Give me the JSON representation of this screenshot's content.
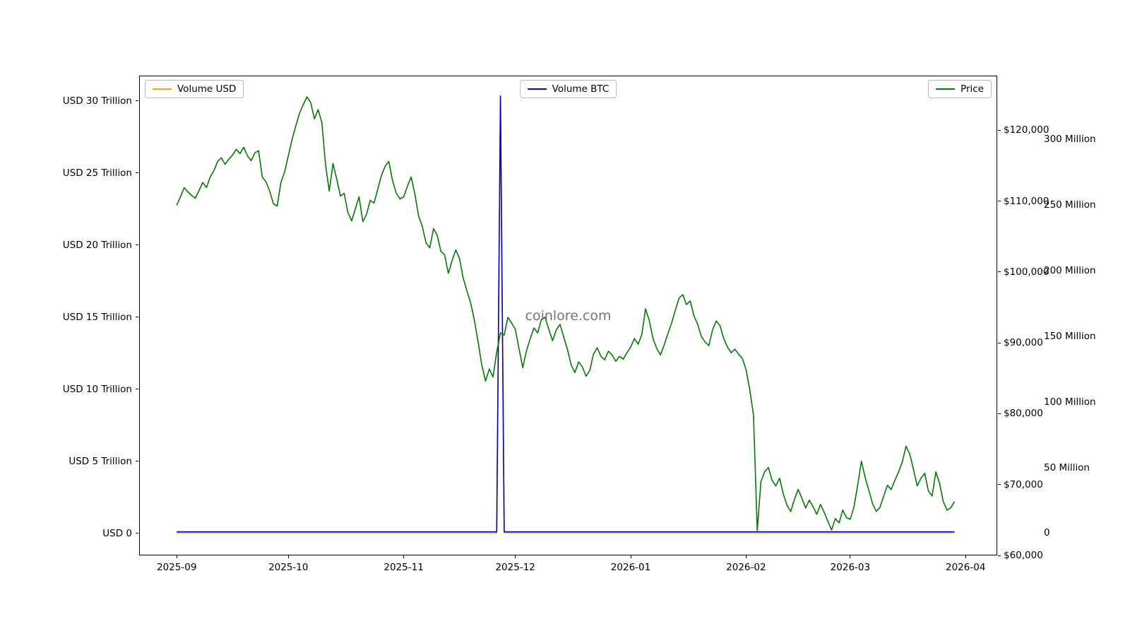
{
  "chart_data": {
    "type": "line",
    "title": "",
    "watermark": "coinlore.com",
    "grid": false,
    "x_axis": {
      "unit": "date",
      "start_date": "2025-09-01",
      "interval": "daily",
      "xlim_days": [
        -10.1,
        220.5
      ],
      "ticks": [
        {
          "label": "2025-09",
          "day": 0
        },
        {
          "label": "2025-10",
          "day": 30
        },
        {
          "label": "2025-11",
          "day": 61
        },
        {
          "label": "2025-12",
          "day": 91
        },
        {
          "label": "2026-01",
          "day": 122
        },
        {
          "label": "2026-02",
          "day": 153
        },
        {
          "label": "2026-03",
          "day": 181
        },
        {
          "label": "2026-04",
          "day": 212
        }
      ]
    },
    "axes": {
      "usd_trillions": {
        "side": "left",
        "unit": "USD Trillion",
        "ylim": [
          -1.52,
          31.76
        ],
        "ticks": [
          {
            "label": "USD 0",
            "value": 0
          },
          {
            "label": "USD 5 Trillion",
            "value": 5
          },
          {
            "label": "USD 10 Trillion",
            "value": 10
          },
          {
            "label": "USD 15 Trillion",
            "value": 15
          },
          {
            "label": "USD 20 Trillion",
            "value": 20
          },
          {
            "label": "USD 25 Trillion",
            "value": 25
          },
          {
            "label": "USD 30 Trillion",
            "value": 30
          }
        ]
      },
      "price_usd": {
        "side": "right",
        "unit": "USD",
        "ylim": [
          60000,
          127700
        ],
        "ticks": [
          {
            "label": "$60,000",
            "value": 60000
          },
          {
            "label": "$70,000",
            "value": 70000
          },
          {
            "label": "$80,000",
            "value": 80000
          },
          {
            "label": "$90,000",
            "value": 90000
          },
          {
            "label": "$100,000",
            "value": 100000
          },
          {
            "label": "$110,000",
            "value": 110000
          },
          {
            "label": "$120,000",
            "value": 120000
          }
        ]
      },
      "btc_millions": {
        "side": "right-outer",
        "unit": "BTC Million",
        "ylim": [
          -17,
          348.5
        ],
        "ticks": [
          {
            "label": "0",
            "value": 0
          },
          {
            "label": "50 Million",
            "value": 50
          },
          {
            "label": "100 Million",
            "value": 100
          },
          {
            "label": "150 Million",
            "value": 150
          },
          {
            "label": "200 Million",
            "value": 200
          },
          {
            "label": "250 Million",
            "value": 250
          },
          {
            "label": "300 Million",
            "value": 300
          }
        ]
      }
    },
    "series": [
      {
        "name": "Volume USD",
        "color": "#ffa500",
        "axis": "usd_trillions",
        "data_spec": {
          "length": 210,
          "baseline": 0.06,
          "spikes": {
            "87": 30.3
          }
        }
      },
      {
        "name": "Volume BTC",
        "color": "#0000cc",
        "axis": "btc_millions",
        "data_spec": {
          "length": 210,
          "baseline": 1.0,
          "spikes": {
            "87": 333
          }
        }
      },
      {
        "name": "Price",
        "color": "#027a02",
        "axis": "price_usd",
        "values": [
          109400,
          110600,
          111900,
          111300,
          110800,
          110400,
          111500,
          112600,
          111900,
          113400,
          114300,
          115600,
          116100,
          115200,
          115900,
          116500,
          117300,
          116700,
          117600,
          116400,
          115700,
          116800,
          117100,
          113400,
          112700,
          111400,
          109600,
          109300,
          112600,
          114100,
          116400,
          118700,
          120600,
          122400,
          123600,
          124700,
          123900,
          121600,
          122900,
          121100,
          115100,
          111400,
          115300,
          113100,
          110700,
          111100,
          108400,
          107200,
          108900,
          110600,
          107100,
          108100,
          110100,
          109700,
          111600,
          113600,
          114900,
          115600,
          112900,
          111100,
          110300,
          110600,
          112100,
          113400,
          111000,
          107900,
          106400,
          104100,
          103400,
          106100,
          105200,
          102900,
          102400,
          99800,
          101600,
          103100,
          101900,
          99100,
          97300,
          95600,
          93200,
          90100,
          86800,
          84600,
          86300,
          85200,
          88700,
          91400,
          91100,
          93600,
          92800,
          91900,
          89100,
          86500,
          88900,
          90600,
          92100,
          91400,
          93300,
          93600,
          91900,
          90300,
          91800,
          92600,
          90800,
          89100,
          86900,
          85800,
          87300,
          86600,
          85300,
          86100,
          88400,
          89300,
          88100,
          87600,
          88800,
          88300,
          87400,
          88100,
          87700,
          88600,
          89400,
          90600,
          89800,
          91200,
          94800,
          93100,
          90600,
          89200,
          88300,
          89700,
          91300,
          92800,
          94600,
          96300,
          96800,
          95400,
          95900,
          93800,
          92600,
          90900,
          90100,
          89600,
          91800,
          93100,
          92400,
          90600,
          89400,
          88600,
          89100,
          88400,
          87800,
          86200,
          83400,
          79800,
          63500,
          70400,
          71800,
          72400,
          70600,
          69800,
          70900,
          68700,
          67100,
          66200,
          67900,
          69300,
          68100,
          66700,
          67800,
          66900,
          65800,
          67200,
          66100,
          64800,
          63600,
          65200,
          64600,
          66400,
          65300,
          65100,
          66800,
          69900,
          73300,
          71000,
          69200,
          67300,
          66200,
          66800,
          68400,
          69900,
          69300,
          70600,
          71800,
          73200,
          75400,
          74300,
          72100,
          69800,
          70900,
          71600,
          69100,
          68400,
          71800,
          70200,
          67600,
          66400,
          66700,
          67600
        ]
      }
    ]
  }
}
